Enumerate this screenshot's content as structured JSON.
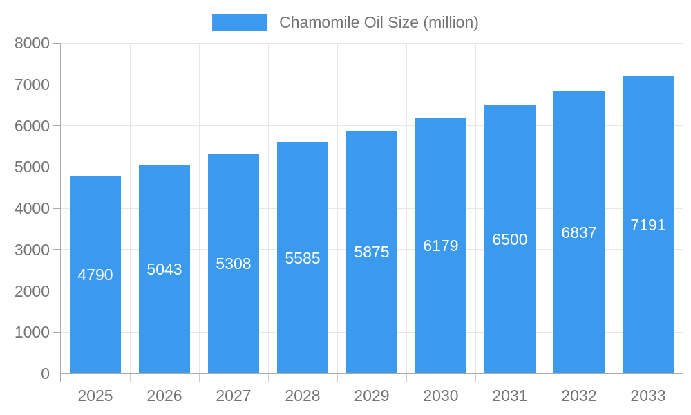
{
  "chart_data": {
    "type": "bar",
    "title": "",
    "legend": "Chamomile Oil Size (million)",
    "categories": [
      "2025",
      "2026",
      "2027",
      "2028",
      "2029",
      "2030",
      "2031",
      "2032",
      "2033"
    ],
    "values": [
      4790,
      5043,
      5308,
      5585,
      5875,
      6179,
      6500,
      6837,
      7191
    ],
    "xlabel": "",
    "ylabel": "",
    "ylim": [
      0,
      8000
    ],
    "ytick_step": 1000,
    "grid": true,
    "legend_position": "top-center",
    "value_labels": "centered-inside-bars",
    "colors": {
      "bar": "#3B99EE",
      "grid": "#E6E6E6",
      "axis": "#AAAAAA",
      "minor_tick": "#CCCCCC",
      "label_text": "#757575",
      "value_label_text": "#FFFFFF",
      "background": "#FFFFFF"
    }
  }
}
